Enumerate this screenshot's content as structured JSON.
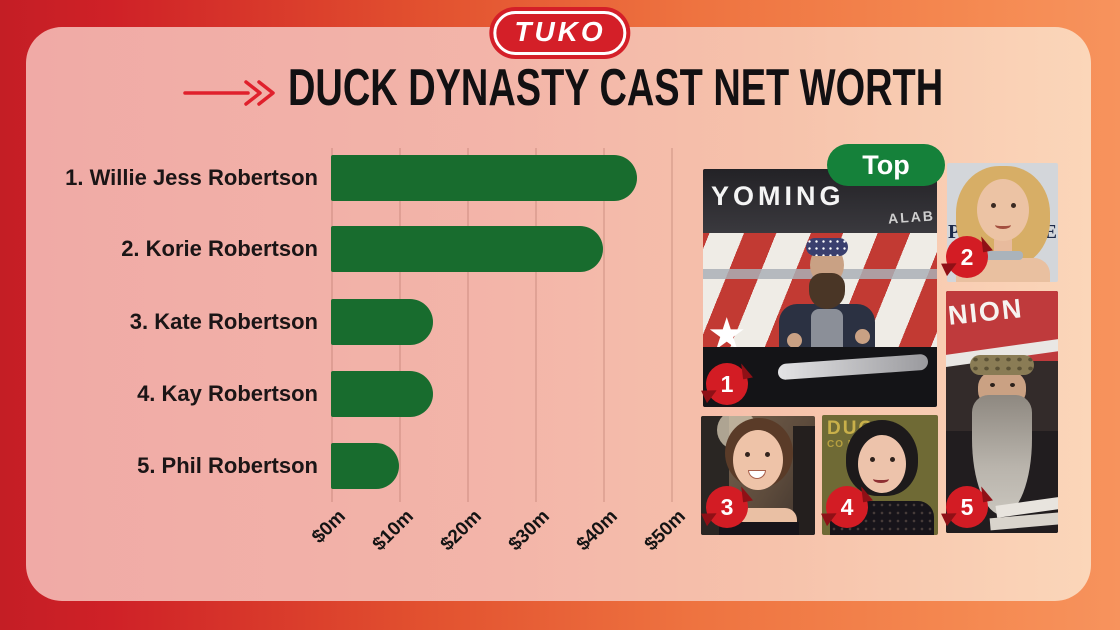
{
  "brand": {
    "logo_text": "TUKO"
  },
  "header": {
    "title": "DUCK DYNASTY CAST NET WORTH",
    "arrow_icon": "double-chevron-right-arrow"
  },
  "chart_data": {
    "type": "bar",
    "orientation": "horizontal",
    "title": "Duck Dynasty cast net worth",
    "categories": [
      "1. Willie Jess Robertson",
      "2. Korie Robertson",
      "3. Kate Robertson",
      "4. Kay Robertson",
      "5. Phil Robertson"
    ],
    "values": [
      45,
      40,
      15,
      15,
      10
    ],
    "unit": "million USD",
    "x_ticks": [
      "$0m",
      "$10m",
      "$20m",
      "$30m",
      "$40m",
      "$50m"
    ],
    "xlim": [
      0,
      50
    ],
    "grid": true,
    "legend_position": "none",
    "bar_color": "#186c2e"
  },
  "collage": {
    "top_badge_label": "Top",
    "photos": [
      {
        "rank": "1",
        "sign_text": "YOMING",
        "sign_text_2": "ALAB"
      },
      {
        "rank": "2",
        "bg_text_left": "PIT",
        "bg_text_right": "E"
      },
      {
        "rank": "3"
      },
      {
        "rank": "4",
        "poster_text": "DUCK",
        "poster_text_2": "CO M"
      },
      {
        "rank": "5",
        "sign_text": "NION"
      }
    ]
  },
  "colors": {
    "bar_green": "#186c2e",
    "rank_badge_red": "#d31c24",
    "top_badge_green": "#15813a",
    "logo_red": "#d41f28",
    "title_arrow_red": "#e0202c",
    "panel_left": "#f0aaa6",
    "panel_right": "#fbd6b9",
    "outer_left": "#c41e25",
    "outer_right": "#f7935d"
  }
}
